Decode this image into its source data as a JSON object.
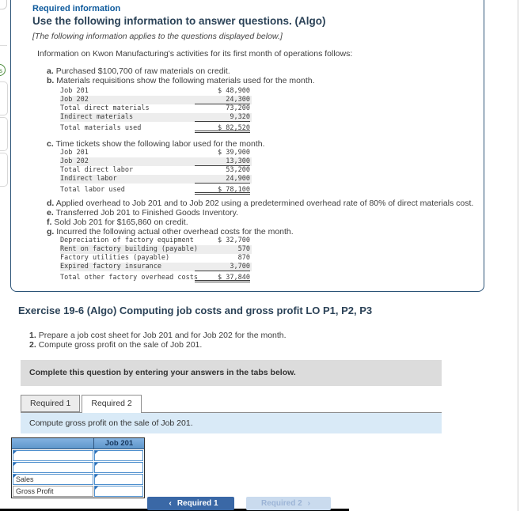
{
  "colors": {
    "header_link_blue": "#0f5b9d",
    "title_navy": "#2b4257",
    "box_border": "#2b5377",
    "table_header_blue": "#6fa3d6",
    "input_border_blue": "#4f90ce",
    "cell_marker_blue": "#2d6eb5",
    "instruction_banner_gray": "#dcdcdc",
    "prompt_banner_blue": "#d9eaf7",
    "nav_active_blue": "#3a68a6",
    "nav_disabled_blue": "#cadbee",
    "sidebar_icon_green": "#4b8b3b"
  },
  "sidebar_fragment": {
    "icon_glyph": "s"
  },
  "required_info": {
    "header": "Required information",
    "title": "Use the following information to answer questions. (Algo)",
    "note": "[The following information applies to the questions displayed below.]",
    "intro": "Information on Kwon Manufacturing's activities for its first month of operations follows:",
    "items": [
      {
        "letter": "a.",
        "text": "Purchased $100,700 of raw materials on credit."
      },
      {
        "letter": "b.",
        "text": "Materials requisitions show the following materials used for the month."
      },
      {
        "letter": "c.",
        "text": "Time tickets show the following labor used for the month."
      },
      {
        "letter": "d.",
        "text": "Applied overhead to Job 201 and to Job 202 using a predetermined overhead rate of 80% of direct materials cost."
      },
      {
        "letter": "e.",
        "text": "Transferred Job 201 to Finished Goods Inventory."
      },
      {
        "letter": "f.",
        "text": "Sold Job 201 for $165,860 on credit."
      },
      {
        "letter": "g.",
        "text": "Incurred the following actual other overhead costs for the month."
      }
    ],
    "materials_table": {
      "rows": [
        {
          "label": "Job 201",
          "amount": "$ 48,900"
        },
        {
          "label": "Job 202",
          "amount": "24,300",
          "shaded": true,
          "border": "single"
        },
        {
          "label": "Total direct materials",
          "amount": "73,200"
        },
        {
          "label": "Indirect materials",
          "amount": "9,320",
          "shaded": true,
          "border": "single"
        },
        {
          "label": "Total materials used",
          "amount": "$ 82,520",
          "border": "double",
          "gap": true
        }
      ]
    },
    "labor_table": {
      "rows": [
        {
          "label": "Job 201",
          "amount": "$ 39,900"
        },
        {
          "label": "Job 202",
          "amount": "13,300",
          "shaded": true,
          "border": "single"
        },
        {
          "label": "Total direct labor",
          "amount": "53,200"
        },
        {
          "label": "Indirect labor",
          "amount": "24,900",
          "shaded": true,
          "border": "single"
        },
        {
          "label": "Total labor used",
          "amount": "$ 78,100",
          "border": "double",
          "gap": true
        }
      ]
    },
    "overhead_table": {
      "rows": [
        {
          "label": "Depreciation of factory equipment",
          "amount": "$ 32,700"
        },
        {
          "label": "Rent on factory building (payable)",
          "amount": "570",
          "shaded": true
        },
        {
          "label": "Factory utilities (payable)",
          "amount": "870"
        },
        {
          "label": "Expired factory insurance",
          "amount": "3,700",
          "shaded": true,
          "border": "single"
        },
        {
          "label": "Total other factory overhead costs",
          "amount": "$ 37,840",
          "border": "double",
          "gap": true
        }
      ]
    }
  },
  "exercise": {
    "title": "Exercise 19-6 (Algo) Computing job costs and gross profit LO P1, P2, P3",
    "tasks": [
      {
        "num": "1.",
        "text": "Prepare a job cost sheet for Job 201 and for Job 202 for the month."
      },
      {
        "num": "2.",
        "text": "Compute gross profit on the sale of Job 201."
      }
    ],
    "instruction_banner": "Complete this question by entering your answers in the tabs below.",
    "tabs": [
      {
        "label": "Required 1",
        "active": false
      },
      {
        "label": "Required 2",
        "active": true
      }
    ],
    "prompt": "Compute gross profit on the sale of Job 201.",
    "answer_table": {
      "column_header": "Job 201",
      "rows": [
        {
          "label": "",
          "label_editable": true,
          "value": "",
          "value_editable": true
        },
        {
          "label": "",
          "label_editable": true,
          "value": "",
          "value_editable": true
        },
        {
          "label": "Sales",
          "label_editable": true,
          "value": "",
          "value_editable": true
        },
        {
          "label": "Gross Profit",
          "label_editable": false,
          "value": "",
          "value_editable": true
        }
      ]
    },
    "nav": {
      "prev_chevron": "‹",
      "prev_label": "Required 1",
      "next_label": "Required 2",
      "next_chevron": "›"
    }
  }
}
